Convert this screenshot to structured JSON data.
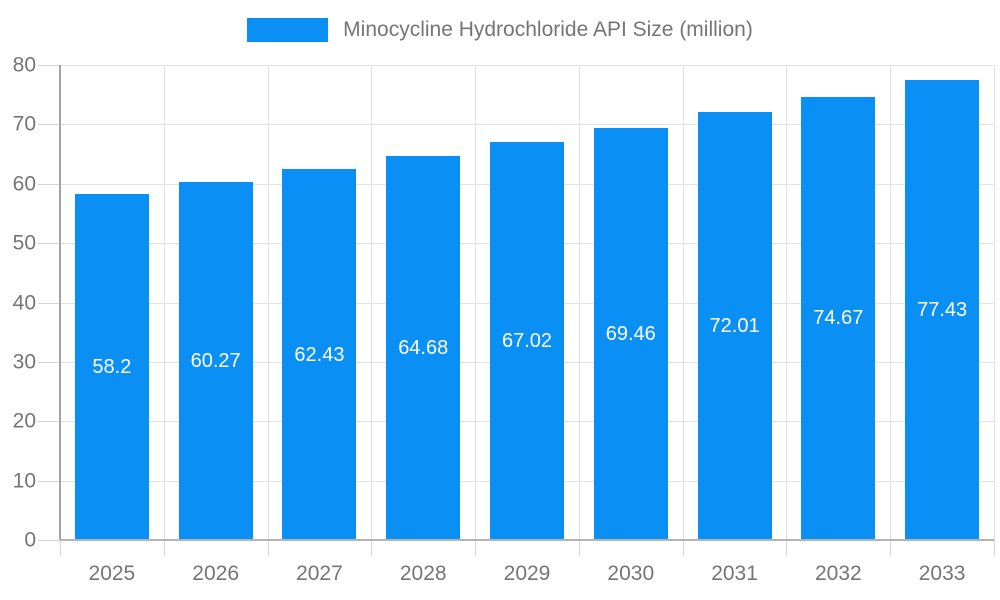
{
  "legend": {
    "label": "Minocycline Hydrochloride API Size (million)"
  },
  "chart_data": {
    "type": "bar",
    "title": "Minocycline Hydrochloride API Size (million)",
    "categories": [
      "2025",
      "2026",
      "2027",
      "2028",
      "2029",
      "2030",
      "2031",
      "2032",
      "2033"
    ],
    "values": [
      58.2,
      60.27,
      62.43,
      64.68,
      67.02,
      69.46,
      72.01,
      74.67,
      77.43
    ],
    "value_labels": [
      "58.2",
      "60.27",
      "62.43",
      "64.68",
      "67.02",
      "69.46",
      "72.01",
      "74.67",
      "77.43"
    ],
    "xlabel": "",
    "ylabel": "",
    "ylim": [
      0,
      80
    ],
    "yticks": [
      0,
      10,
      20,
      30,
      40,
      50,
      60,
      70,
      80
    ],
    "grid": true,
    "legend_position": "top-center",
    "colors": {
      "bar": "#0a90f5",
      "bar_value_text": "#ffffff",
      "axis_text": "#757575",
      "gridline": "#e2e2e2",
      "tick": "#d4d4d4",
      "axis_line_y": "#a3a3a3",
      "axis_line_x": "#b3b3b3",
      "background": "#ffffff"
    }
  }
}
